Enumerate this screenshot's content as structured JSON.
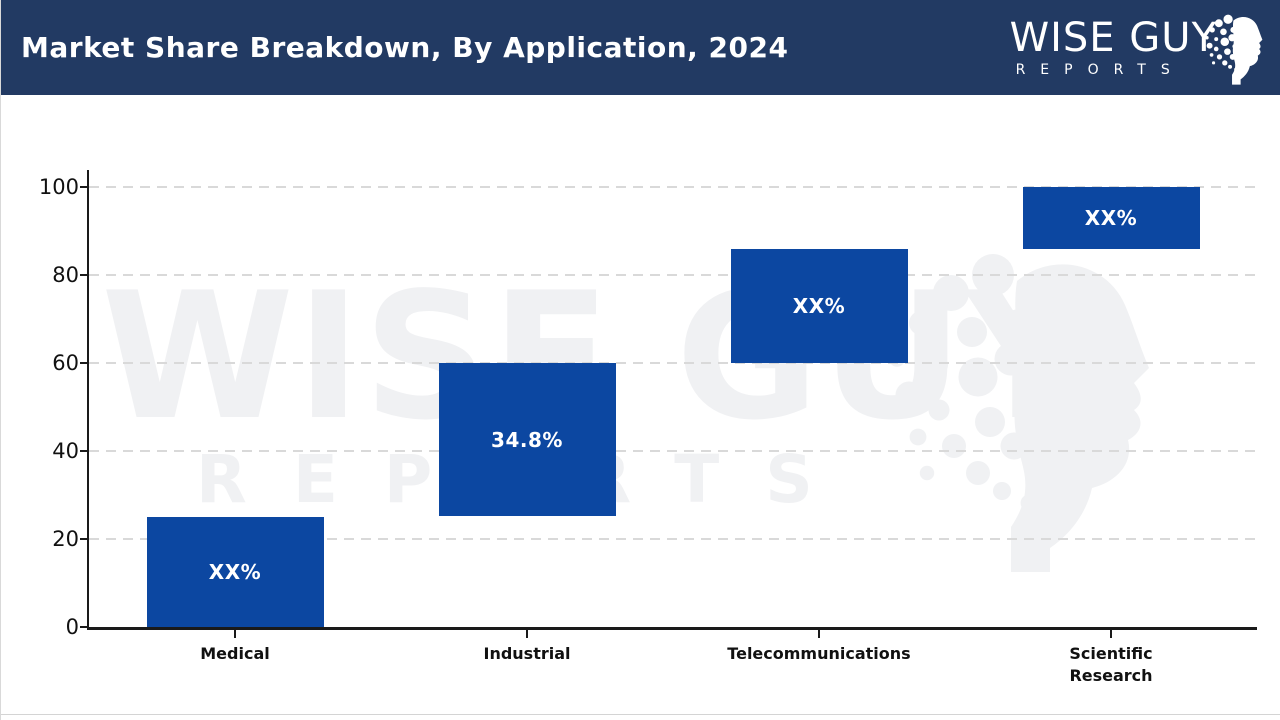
{
  "header": {
    "title": "Market Share Breakdown, By Application, 2024",
    "logo": {
      "line1": "WISE GUY",
      "line2": "REPORTS"
    }
  },
  "watermark": {
    "line1": "WISE GUY",
    "line2": "REPORTS"
  },
  "colors": {
    "header_bg": "#223a63",
    "bar": "#0c47a1",
    "grid": "#d9d9d9",
    "axis": "#1a1a1a",
    "bar_label": "#ffffff",
    "watermark": "#f0f1f3"
  },
  "chart_data": {
    "type": "bar",
    "variant": "waterfall",
    "title": "Market Share Breakdown, By Application, 2024",
    "categories": [
      "Medical",
      "Industrial",
      "Telecommunications",
      "Scientific Research"
    ],
    "tick_labels": [
      "Medical",
      "Industrial",
      "Telecommunications",
      "Scientific\nResearch"
    ],
    "segments": [
      {
        "category": "Medical",
        "start": 0,
        "end": 25,
        "label": "XX%"
      },
      {
        "category": "Industrial",
        "start": 25.2,
        "end": 60,
        "label": "34.8%"
      },
      {
        "category": "Telecommunications",
        "start": 60,
        "end": 86,
        "label": "XX%"
      },
      {
        "category": "Scientific Research",
        "start": 86,
        "end": 100,
        "label": "XX%"
      }
    ],
    "ylabel": "",
    "xlabel": "",
    "ylim": [
      0,
      100
    ],
    "yticks": [
      0,
      20,
      40,
      60,
      80,
      100
    ],
    "grid": "horizontal-dashed",
    "legend": "none"
  }
}
